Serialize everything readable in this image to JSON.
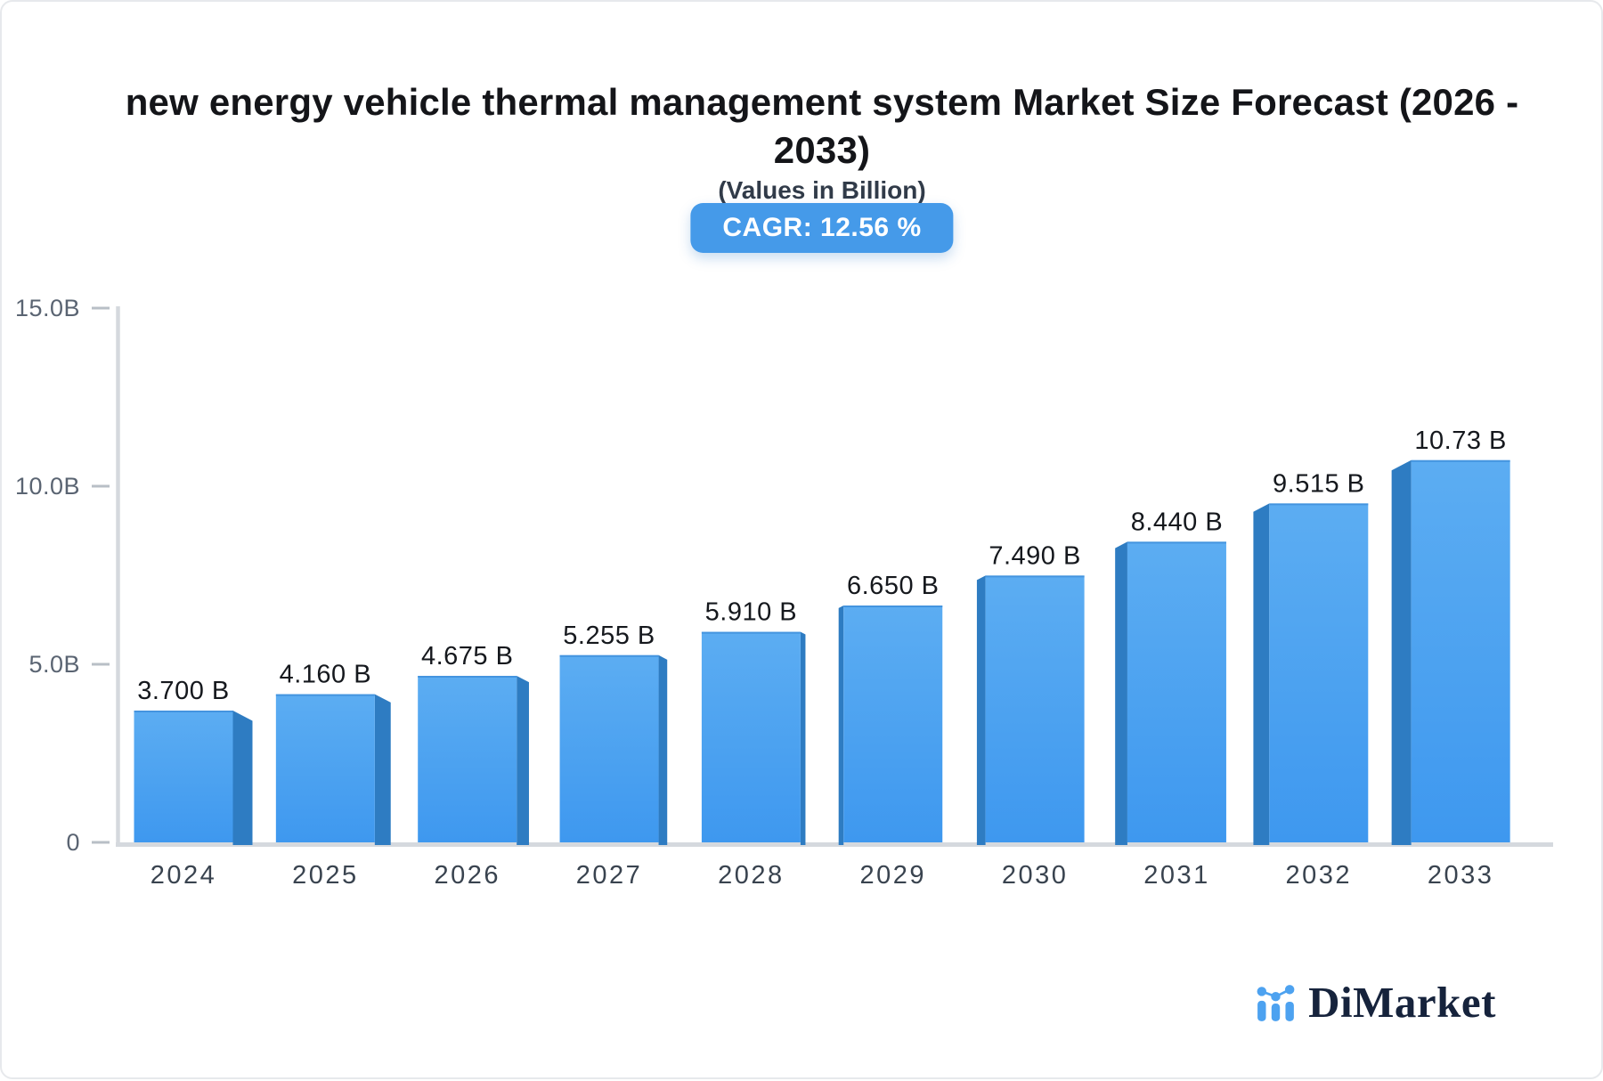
{
  "header": {
    "title_line1": "new energy vehicle thermal management system Market Size Forecast (2026 -",
    "title_line2": "2033)",
    "subtitle": "(Values in Billion)",
    "cagr_label": "CAGR: 12.56 %"
  },
  "chart_data": {
    "type": "bar",
    "title": "new energy vehicle thermal management system Market Size Forecast (2026 - 2033)",
    "subtitle": "(Values in Billion)",
    "annotation": "CAGR: 12.56 %",
    "categories": [
      "2024",
      "2025",
      "2026",
      "2027",
      "2028",
      "2029",
      "2030",
      "2031",
      "2032",
      "2033"
    ],
    "values": [
      3.7,
      4.16,
      4.675,
      5.255,
      5.91,
      6.65,
      7.49,
      8.44,
      9.515,
      10.73
    ],
    "value_labels": [
      "3.700 B",
      "4.160 B",
      "4.675 B",
      "5.255 B",
      "5.910 B",
      "6.650 B",
      "7.490 B",
      "8.440 B",
      "9.515 B",
      "10.73 B"
    ],
    "xlabel": "",
    "ylabel": "",
    "ylim": [
      0,
      15
    ],
    "y_ticks": [
      {
        "label": "15.0B",
        "value": 15
      },
      {
        "label": "10.0B",
        "value": 10
      },
      {
        "label": "5.0B",
        "value": 5
      },
      {
        "label": "0",
        "value": 0
      }
    ],
    "grid": false,
    "legend": false,
    "bar_style": "3d-perspective-center",
    "colors": {
      "bar_face_top": "#5cadf2",
      "bar_face_bottom": "#3e98ef",
      "bar_side": "#2e7cc2",
      "bar_top_edge": "#4090dc",
      "axis": "#d5d9de",
      "tick_dash": "#b8bfc6",
      "y_tick_label": "#5a6472",
      "x_tick_label": "#39434f",
      "value_label": "#15181d",
      "badge_bg": "#459ae9",
      "badge_text": "#ffffff"
    }
  },
  "footer": {
    "brand": "DiMarket",
    "logo_icon": "bar-chart-with-dots-icon",
    "brand_color": "#16233c",
    "icon_color": "#4da2f0"
  }
}
